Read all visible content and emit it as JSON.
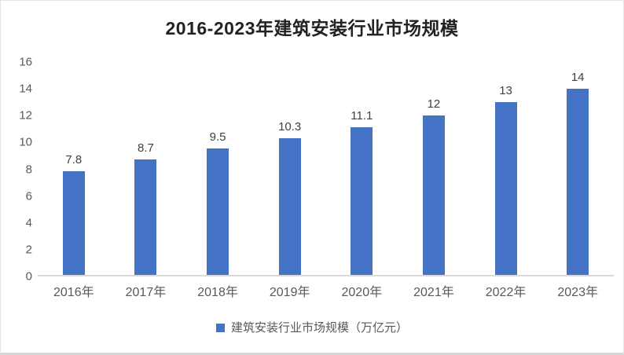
{
  "chart_data": {
    "type": "bar",
    "title": "2016-2023年建筑安装行业市场规模",
    "categories": [
      "2016年",
      "2017年",
      "2018年",
      "2019年",
      "2020年",
      "2021年",
      "2022年",
      "2023年"
    ],
    "values": [
      7.8,
      8.7,
      9.5,
      10.3,
      11.1,
      12,
      13,
      14
    ],
    "value_labels": [
      "7.8",
      "8.7",
      "9.5",
      "10.3",
      "11.1",
      "12",
      "13",
      "14"
    ],
    "series_name": "建筑安装行业市场规模（万亿元）",
    "xlabel": "",
    "ylabel": "",
    "ylim": [
      0,
      16
    ],
    "yticks": [
      0,
      2,
      4,
      6,
      8,
      10,
      12,
      14,
      16
    ],
    "grid": false,
    "legend_position": "bottom",
    "colors": {
      "bar": "#4472C4",
      "title": "#222222",
      "tick_label": "#595959",
      "data_label": "#404040",
      "axis_line": "#d9d9d9"
    }
  }
}
